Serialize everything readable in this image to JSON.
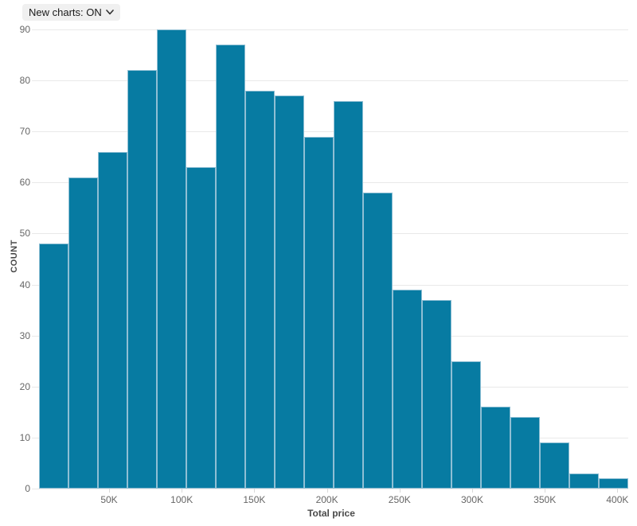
{
  "controls": {
    "new_charts_dropdown": {
      "label": "New charts: ON",
      "state": "ON"
    }
  },
  "chart_data": {
    "type": "bar",
    "subtype": "histogram",
    "title": "",
    "xlabel": "Total price",
    "ylabel": "COUNT",
    "bin_width": 20000,
    "bin_starts": [
      "0",
      "20K",
      "40K",
      "60K",
      "80K",
      "100K",
      "120K",
      "140K",
      "160K",
      "180K",
      "200K",
      "220K",
      "240K",
      "260K",
      "280K",
      "300K",
      "320K",
      "340K",
      "360K",
      "380K"
    ],
    "values": [
      48,
      61,
      66,
      82,
      90,
      63,
      87,
      78,
      77,
      69,
      76,
      58,
      39,
      37,
      25,
      16,
      14,
      9,
      3,
      2
    ],
    "x_tick_labels": [
      "50K",
      "100K",
      "150K",
      "200K",
      "250K",
      "300K",
      "350K",
      "400K"
    ],
    "x_tick_values": [
      50000,
      100000,
      150000,
      200000,
      250000,
      300000,
      350000,
      400000
    ],
    "y_tick_values": [
      0,
      10,
      20,
      30,
      40,
      50,
      60,
      70,
      80,
      90
    ],
    "xlim": [
      0,
      400000
    ],
    "ylim": [
      0,
      91
    ],
    "grid": "horizontal",
    "legend": "none",
    "colors": {
      "bar_fill": "#077BA2",
      "bar_stroke": "#8FBFD4",
      "gridline": "#E9E9E9",
      "tick_text": "#666666",
      "axis_title_text": "#4A4A4A",
      "dropdown_bg": "#F0F0F0",
      "dropdown_text": "#1A1A1A"
    }
  }
}
